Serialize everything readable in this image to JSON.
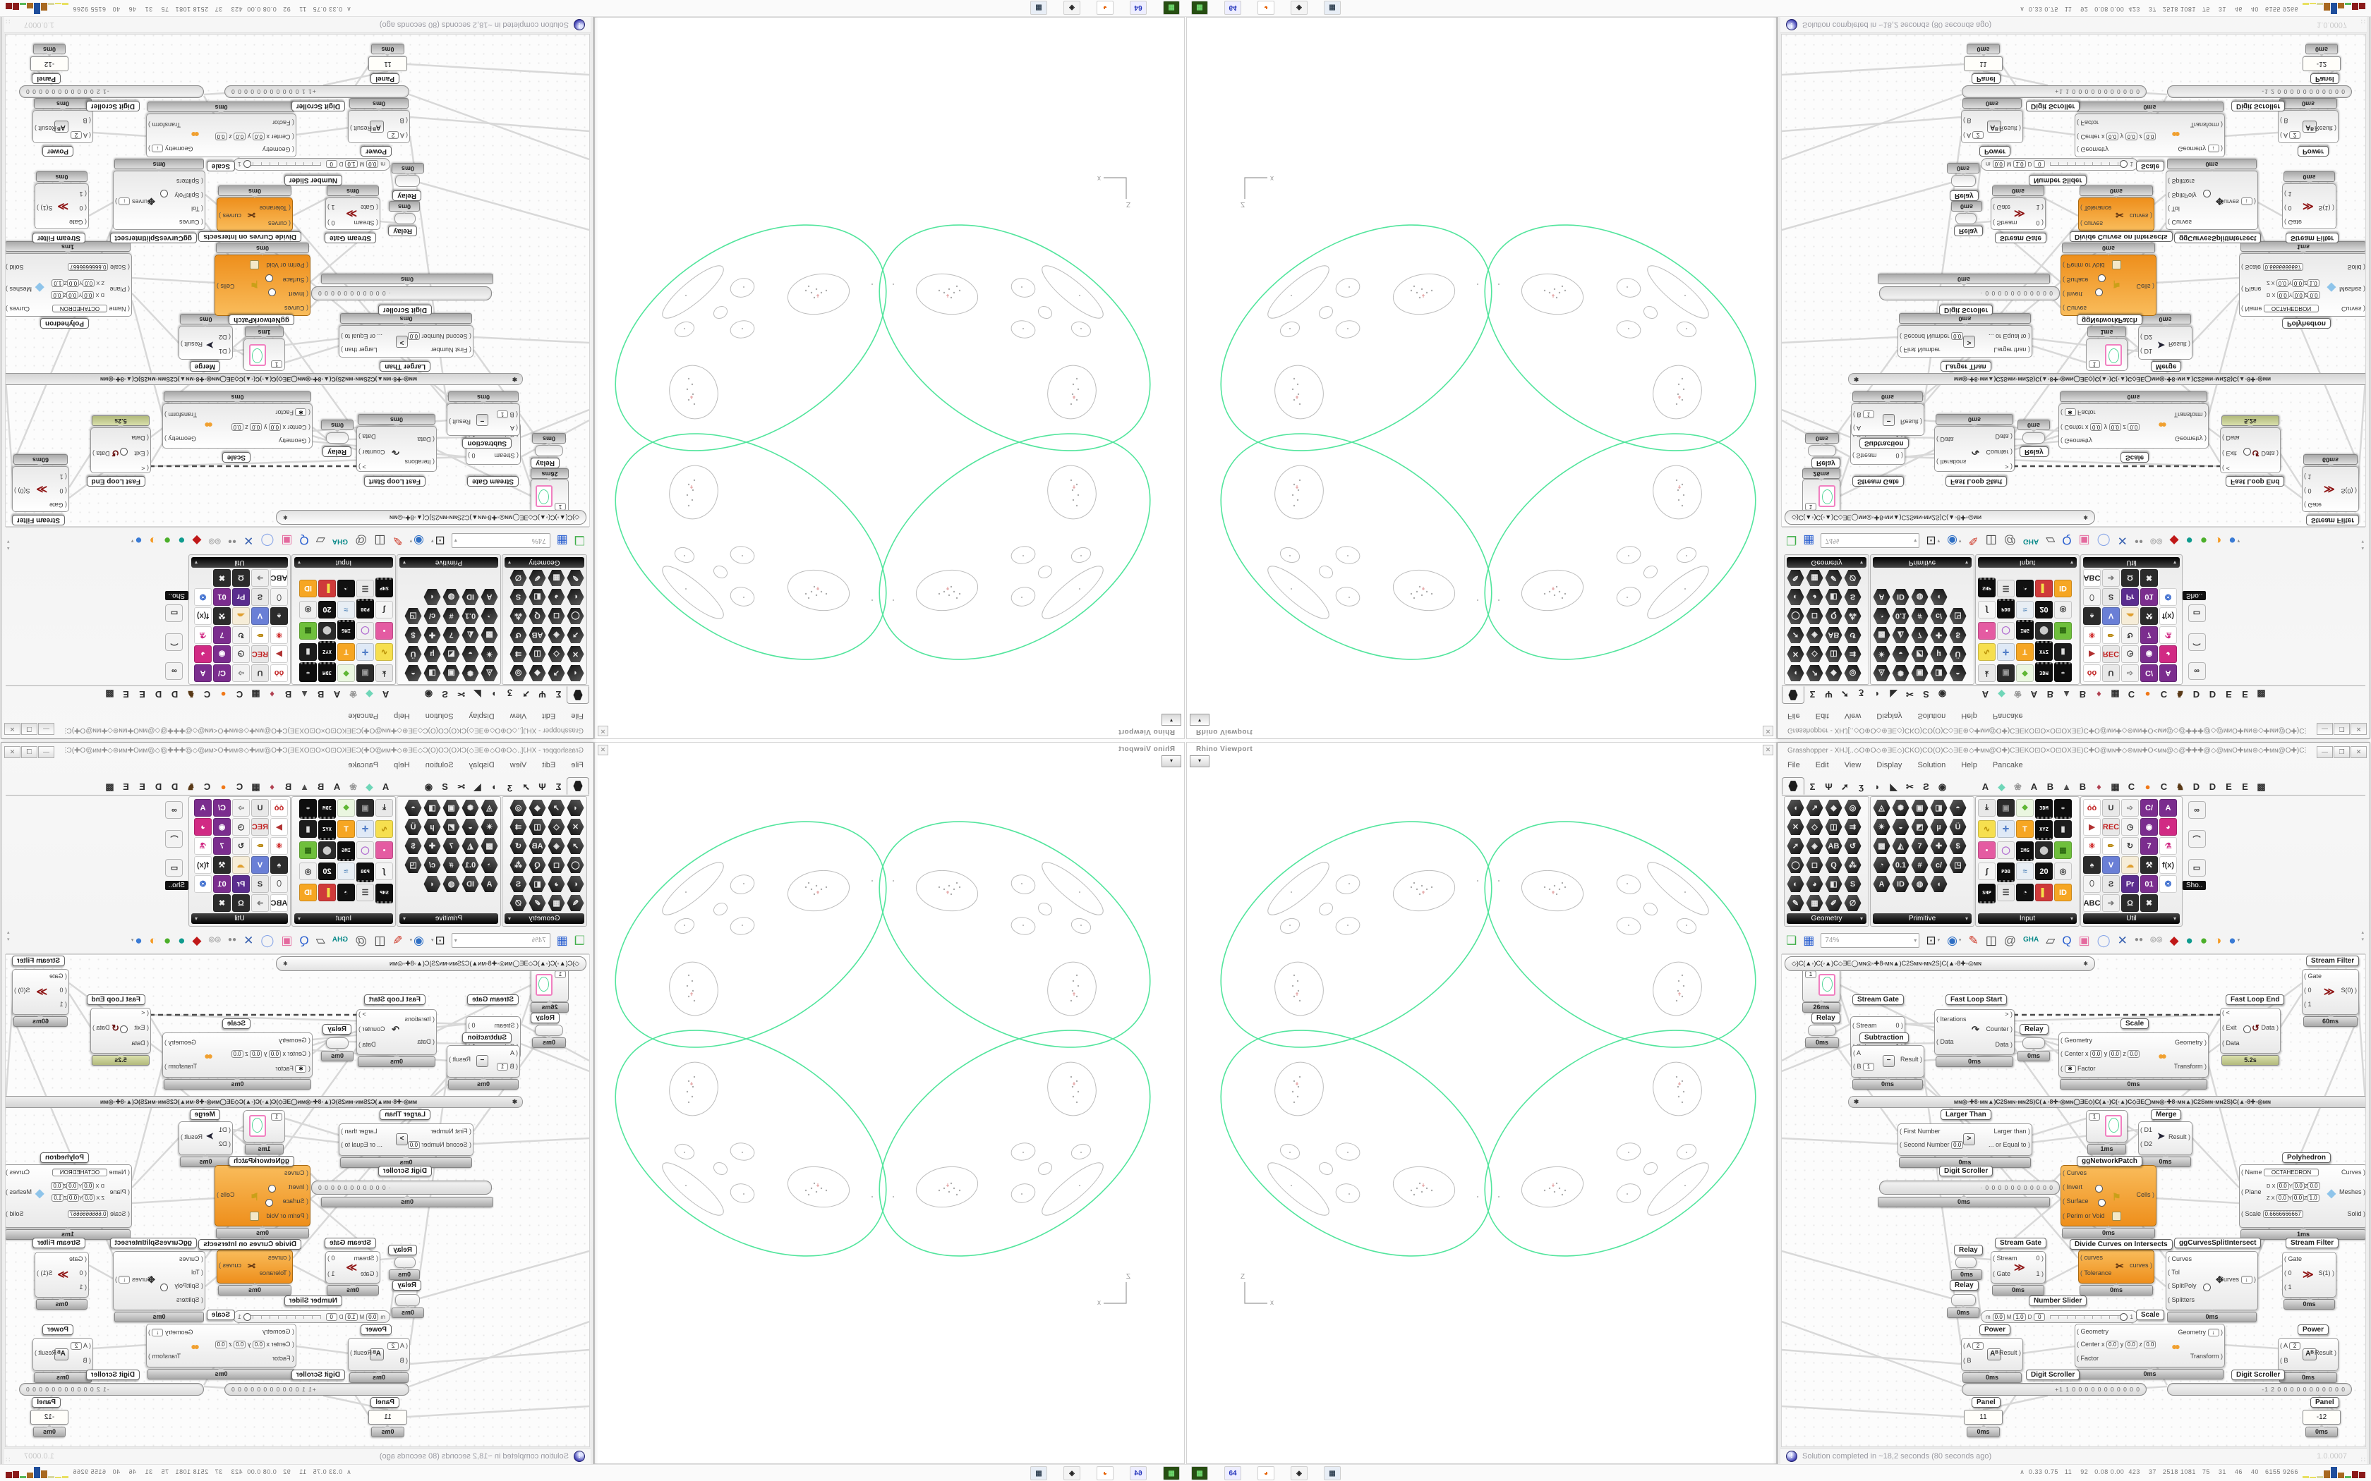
{
  "viewport": {
    "title": "Rhino Viewport",
    "close": "✕",
    "dropdown": "▾",
    "axis_z": "Z",
    "axis_x": "x",
    "curve_color": "#53e59d"
  },
  "gh": {
    "title": "Grasshopper - XHJ[..◇O⊕O◇⊛ƎE◇)CKO)CO(O)C◇ƎE⊛◇✚ᴍɴ@O✚)CƎEKO⊡O×O⊡OXƎE)C✚O@ᴍɴ✚◇⊛ᴍɴ✚O<ᴍɴ@◇@✚✚✚@◇@ᴍɴO✚ᴍɴ⊛◇✚ᴍɴ@O✚)CƎEKO⊡O≈O⊡…",
    "btn_min": "—",
    "btn_max": "❐",
    "btn_close": "✕",
    "menu": [
      "File",
      "Edit",
      "View",
      "Display",
      "Solution",
      "Help",
      "Pancake"
    ],
    "tabs": [
      {
        "hex": true,
        "sel": true,
        "name": "tab-params"
      },
      {
        "g": "Σ",
        "name": "tab-maths"
      },
      {
        "g": "Ψ",
        "name": "tab-sets"
      },
      {
        "g": "➚",
        "name": "tab-vector"
      },
      {
        "g": "ʒ",
        "name": "tab-curve"
      },
      {
        "g": "◗",
        "name": "tab-surface"
      },
      {
        "g": "◣",
        "name": "tab-mesh"
      },
      {
        "g": "✂",
        "name": "tab-intersect"
      },
      {
        "g": "Ƨ",
        "name": "tab-transform"
      },
      {
        "g": "◉",
        "name": "tab-display"
      },
      {
        "g": "A",
        "name": "tab-addon-a"
      },
      {
        "g": "◆",
        "c": "#6fd6b8",
        "name": "tab-addon-gem"
      },
      {
        "g": "❀",
        "c": "#999999",
        "name": "tab-addon-flower"
      },
      {
        "g": "A",
        "name": "tab-addon-a2"
      },
      {
        "g": "B",
        "name": "tab-addon-b"
      },
      {
        "g": "▲",
        "c": "#4a4a4a",
        "name": "tab-addon-mountain"
      },
      {
        "g": "B",
        "name": "tab-addon-b2"
      },
      {
        "g": "♦",
        "c": "#b04050",
        "name": "tab-addon-shield"
      },
      {
        "g": "▦",
        "c": "#333333",
        "name": "tab-addon-grid"
      },
      {
        "g": "C",
        "name": "tab-addon-c"
      },
      {
        "g": "●",
        "c": "#f07818",
        "name": "tab-addon-orange"
      },
      {
        "g": "C",
        "name": "tab-addon-c2"
      },
      {
        "g": "♞",
        "c": "#5a3a18",
        "name": "tab-addon-bird"
      },
      {
        "g": "D",
        "name": "tab-addon-d"
      },
      {
        "g": "D",
        "name": "tab-addon-d2"
      },
      {
        "g": "E",
        "name": "tab-addon-e"
      },
      {
        "g": "E",
        "name": "tab-addon-e2"
      },
      {
        "g": "▩",
        "c": "#333333",
        "name": "tab-addon-grid2"
      }
    ],
    "palettes": [
      {
        "label": "Geometry",
        "icons": [
          {
            "g": "◖"
          },
          {
            "g": "↗"
          },
          {
            "g": "◆"
          },
          {
            "g": "◎"
          },
          {
            "g": "✕"
          },
          {
            "g": "◇"
          },
          {
            "g": "◫"
          },
          {
            "g": "⇉"
          },
          {
            "g": "➚"
          },
          {
            "g": "◈"
          },
          {
            "g": "AB"
          },
          {
            "g": "↺"
          },
          {
            "g": "◯"
          },
          {
            "g": "◻"
          },
          {
            "g": "Q"
          },
          {
            "g": "⁂"
          },
          {
            "g": "◐"
          },
          {
            "g": "◕"
          },
          {
            "g": "◧"
          },
          {
            "g": "S"
          },
          {
            "g": "✎"
          },
          {
            "g": "▦"
          },
          {
            "g": "✐"
          },
          {
            "g": "∅"
          }
        ]
      },
      {
        "label": "Primitive",
        "icons": [
          {
            "g": "◬"
          },
          {
            "g": "✺"
          },
          {
            "g": "▣"
          },
          {
            "g": "◨"
          },
          {
            "g": "◓"
          },
          {
            "g": "✴"
          },
          {
            "g": "◒"
          },
          {
            "g": "◩"
          },
          {
            "g": "µ"
          },
          {
            "g": "Ü"
          },
          {
            "g": "▩"
          },
          {
            "g": "◭"
          },
          {
            "g": "7"
          },
          {
            "g": "✚"
          },
          {
            "g": "$"
          },
          {
            "g": "◔"
          },
          {
            "g": "0.1"
          },
          {
            "g": "#"
          },
          {
            "g": "c/"
          },
          {
            "g": "◳"
          },
          {
            "g": "A"
          },
          {
            "g": "ID"
          },
          {
            "g": "◍"
          },
          {
            "g": "◖"
          }
        ]
      },
      {
        "label": "Input",
        "icons": [
          {
            "g": "⤓",
            "bg": "#e8e8e8",
            "fg": "#222"
          },
          {
            "g": "▣",
            "bg": "#2b2b2b",
            "fg": "#999"
          },
          {
            "g": "❖",
            "bg": "#eaf6e0",
            "fg": "#5cb531"
          },
          {
            "g": "3DM",
            "chip": true
          },
          {
            "g": "∞",
            "chip": true
          },
          {
            "g": "∿",
            "bg": "#f6df4f",
            "fg": "#b58a00"
          },
          {
            "g": "✛",
            "bg": "#dfe9f6",
            "fg": "#3a6cc0"
          },
          {
            "g": "T",
            "bg": "#f6a623",
            "fg": "#fff"
          },
          {
            "g": "XYZ",
            "chip": true
          },
          {
            "g": "▮",
            "bg": "#1c1c1c",
            "fg": "#ddd"
          },
          {
            "g": "▪",
            "bg": "#e45ba2",
            "fg": "#fff"
          },
          {
            "g": "◯",
            "bg": "#efefef",
            "fg": "#b06ad0"
          },
          {
            "g": "IMG",
            "chip": true
          },
          {
            "g": "⬤",
            "bg": "#2a2a2a",
            "fg": "#ccc"
          },
          {
            "g": "▦",
            "bg": "#6fbf3c",
            "fg": "#2d6a12"
          },
          {
            "g": "∫",
            "bg": "#f4f4f4",
            "fg": "#222"
          },
          {
            "g": "PDB",
            "chip": true
          },
          {
            "g": "≈",
            "bg": "#e8eef4",
            "fg": "#5588bb"
          },
          {
            "g": "20",
            "bg": "#111",
            "fg": "#fff"
          },
          {
            "g": "◎",
            "bg": "#efefef",
            "fg": "#333"
          },
          {
            "g": "SHP",
            "chip": true
          },
          {
            "g": "☰",
            "bg": "#e9e9e9",
            "fg": "#444"
          },
          {
            "g": "◔",
            "bg": "#111",
            "fg": "#eee"
          },
          {
            "g": "▌",
            "bg": "#cf3a3a",
            "fg": "#f4e04a"
          },
          {
            "g": "ID",
            "bg": "#f6a623",
            "fg": "#fff"
          }
        ]
      },
      {
        "label": "Util",
        "icons": [
          {
            "g": "óò",
            "bg": "#fff",
            "fg": "#c02020"
          },
          {
            "g": "U",
            "bg": "#e8e8e8",
            "fg": "#333"
          },
          {
            "g": "➩",
            "bg": "#f2f2f2",
            "fg": "#888"
          },
          {
            "g": "C/",
            "bg": "#7b2d8e",
            "fg": "#fff"
          },
          {
            "g": "A",
            "bg": "#7b2d8e",
            "fg": "#fff"
          },
          {
            "g": "▶",
            "bg": "#fff",
            "fg": "#b03030"
          },
          {
            "g": "REC",
            "bg": "#e8e8e8",
            "fg": "#c02020"
          },
          {
            "g": "◷",
            "bg": "#f4f4f4",
            "fg": "#333"
          },
          {
            "g": "◉",
            "bg": "#7b2d8e",
            "fg": "#fff"
          },
          {
            "g": "◕",
            "bg": "#d12a84",
            "fg": "#fff"
          },
          {
            "g": "⚛",
            "bg": "#fff",
            "fg": "#cc2222"
          },
          {
            "g": "✏",
            "bg": "#fff",
            "fg": "#b8860b"
          },
          {
            "g": "↻",
            "bg": "#f4f4f4",
            "fg": "#333"
          },
          {
            "g": "7",
            "bg": "#7b2d8e",
            "fg": "#fff"
          },
          {
            "g": "⚗",
            "bg": "#fff",
            "fg": "#d12a84"
          },
          {
            "g": "♠",
            "bg": "#2b2b2b",
            "fg": "#ddd"
          },
          {
            "g": "V",
            "bg": "#6a7fd6",
            "fg": "#fff"
          },
          {
            "g": "☁",
            "bg": "#f6edd8",
            "fg": "#e0a030"
          },
          {
            "g": "⚒",
            "bg": "#2b2b2b",
            "fg": "#eee"
          },
          {
            "g": "f(x)",
            "bg": "#fff",
            "fg": "#333"
          },
          {
            "g": "⬯",
            "bg": "#f4f4f4",
            "fg": "#555"
          },
          {
            "g": "Ƨ",
            "bg": "#e8e8e8",
            "fg": "#333"
          },
          {
            "g": "Pr",
            "bg": "#5b2d8e",
            "fg": "#fff"
          },
          {
            "g": "01",
            "bg": "#7b2d8e",
            "fg": "#fff"
          },
          {
            "g": "❂",
            "bg": "#fff",
            "fg": "#3366cc"
          },
          {
            "g": "ABC",
            "bg": "#fff",
            "fg": "#222"
          },
          {
            "g": "➔",
            "bg": "#eee",
            "fg": "#777"
          },
          {
            "g": "Ω",
            "bg": "#2b2b2b",
            "fg": "#eee"
          },
          {
            "g": "✖",
            "bg": "#2b2b2b",
            "fg": "#eee"
          }
        ]
      }
    ],
    "overflow_icons": [
      {
        "g": "∞",
        "name": "goggles-icon"
      },
      {
        "g": "⌒",
        "name": "headset-icon"
      },
      {
        "g": "▭",
        "name": "projector-icon"
      }
    ],
    "overflow_tooltip": "Sho..",
    "toolbar": {
      "leading": [
        {
          "g": "❏",
          "c": "#3fae49",
          "name": "new-document-icon"
        },
        {
          "g": "▦",
          "c": "#2a5fd0",
          "name": "save-document-icon"
        }
      ],
      "zoom": "74%",
      "caret": "▾",
      "icons": [
        {
          "g": "⊡",
          "c": "#222",
          "dd": true,
          "name": "zoom-extents-icon"
        },
        {
          "g": "◉",
          "c": "#2f6fc4",
          "dd": true,
          "name": "preview-eye-icon"
        },
        {
          "g": "✎",
          "c": "#cc3322",
          "name": "paint-icon"
        },
        {
          "g": "◫",
          "c": "#333",
          "name": "extrude-icon"
        },
        {
          "g": "@",
          "c": "#666",
          "name": "at-icon"
        },
        {
          "g": "GHA",
          "c": "#0a8a8a",
          "small": true,
          "name": "gha-icon"
        },
        {
          "g": "▱",
          "c": "#444",
          "name": "sketch-icon"
        },
        {
          "g": "Q",
          "c": "#2a5fd0",
          "name": "find-icon"
        },
        {
          "g": "▣",
          "c": "#e46a9e",
          "name": "package-icon"
        },
        {
          "g": "◯",
          "c": "#8aa7e8",
          "name": "balloon-icon"
        },
        {
          "g": "✕",
          "c": "#3a62b0",
          "name": "jump-wires-icon"
        },
        {
          "g": "●●",
          "c": "#8a8a8a",
          "small": true,
          "name": "spheres-icon"
        },
        {
          "g": "◎◎",
          "c": "#aaa",
          "small": true,
          "name": "rings-icon"
        },
        {
          "g": "◆",
          "c": "#c01818",
          "name": "gem-icon"
        },
        {
          "g": "●",
          "c": "#0f9b8e",
          "name": "ball-teal-icon"
        },
        {
          "g": "●",
          "c": "#4caf2a",
          "name": "ball-green-icon"
        },
        {
          "g": "◑",
          "c": "#f59a23",
          "name": "ball-orange-icon"
        },
        {
          "g": "●",
          "c": "#3a7bd5",
          "dd": true,
          "name": "ball-blue-icon"
        }
      ],
      "scroll_up": "▴",
      "scroll_down": "▾"
    },
    "docsel": {
      "text": "◇)C(▲◦)C(◦▲)C◇ƎE◯ᴍɴ◎◦✚8◦ᴍɴ▲)C2Sᴍɴ◦ᴍɴ2S)C(▲◦8✚◦◎ᴍɴ",
      "close": "✱"
    },
    "status": {
      "text": "Solution completed in ~18,2 seconds (80 seconds ago)",
      "version": "1.0.0007",
      "grip": "∷"
    }
  },
  "common": {
    "relay": "Relay",
    "ms0": "0ms",
    "ms1": "1ms",
    "stream": "Stream",
    "gate": "Gate",
    "n0": "0",
    "n1": "1",
    "v00": "0.0",
    "stream_gate": "Stream Gate",
    "stream_filter": "Stream Filter",
    "digit_scroller": "Digit Scroller",
    "panel": "Panel",
    "power": "Power",
    "scale": "Scale",
    "geometry": "Geometry",
    "center": "Center",
    "factor": "Factor",
    "transform": "Transform",
    "result": "Result",
    "data": "Data",
    "curves": "Curves",
    "ax": "x",
    "ay": "y",
    "az": "z",
    "ast": "✱"
  },
  "canvas": {
    "group": {
      "l": "✱",
      "r": "✱",
      "text": "ᴍɴ◎◦✚8◦ᴍɴ▲)C2Sᴍɴ◦ᴍɴ2S)C(▲◦8✚◦◎ᴍɴ◯ƎE◇)C(▲◦)C(◦▲)C◇ƎE◯ᴍɴ◎◦✚8◦ᴍɴ▲)C2Sᴍɴ◦ᴍɴ2S)C(▲◦8✚◦◎ᴍɴ"
    },
    "nodes": {
      "relay_circle": {
        "value": "1",
        "time": "26ms"
      },
      "fls": {
        "tag": "Fast Loop Start",
        "iterations": "Iterations",
        "gt": ">",
        "counter": "Counter",
        "icon": "↷"
      },
      "fle": {
        "tag": "Fast Loop End",
        "lt": "<",
        "exit": "Exit",
        "time": "5.2s",
        "icon": "↺"
      },
      "sf_a": {
        "out": "S(0)",
        "time": "60ms"
      },
      "sf_b": {
        "out": "S(1)"
      },
      "sub": {
        "tag": "Subtraction",
        "a": "A",
        "b": "B",
        "b_value": "1",
        "glyph": "−"
      },
      "lt": {
        "tag": "Larger Than",
        "first": "First Number",
        "second": "Second Number",
        "glyph": ">",
        "out1": "Larger than",
        "out2": "... or Equal to"
      },
      "ds_a": {
        "digits": "· 0 0 0 0 0 0 0 0 0  0 0"
      },
      "ggnp": {
        "tag": "ggNetworkPatch",
        "value": "1"
      },
      "merge": {
        "tag": "Merge",
        "d1": "D1",
        "d2": "D2",
        "icon": "➤"
      },
      "poly": {
        "tag": "Polyhedron",
        "name": "Name",
        "name_value": "OCTAHEDRON",
        "plane": "Plane",
        "dx": "D X",
        "zx": "Z X",
        "y": "Y",
        "z": "Z",
        "v1": "1.0",
        "scale_value": "0.6666666667",
        "meshes": "Meshes",
        "solid": "Solid",
        "icon": "◆"
      },
      "div_a": {
        "tag": "Divide Curves on Intersects",
        "invert": "Invert",
        "surface": "Surface",
        "perim": "Perim or Void",
        "cells": "Cells",
        "icon": "⚑"
      },
      "div_b": {
        "curves": "curves",
        "tolerance": "Tolerance",
        "icon": "✂"
      },
      "ggsi": {
        "tag": "ggCurvesSplitIntersect",
        "tol": "Tol",
        "splitpoly": "SplitPoly",
        "splitters": "Splitters",
        "icon": "✥"
      },
      "slider": {
        "tag": "Number Slider",
        "m": "m",
        "mv": "0.0",
        "M": "M",
        "Mv": "1.0",
        "d": "D",
        "dv": "0",
        "end": "1"
      },
      "power": {
        "a": "A",
        "av": "2",
        "b": "B",
        "icon": "Aᴮ"
      },
      "ds_b": {
        "digits": "+1 1  0 0 0 0 0 0 0 0 0 0 0"
      },
      "ds_c": {
        "digits": "-1 2  0 0 0 0 0 0 0 0 0 0 0"
      },
      "pan_a": {
        "value": "11"
      },
      "pan_b": {
        "value": "-12"
      },
      "gate_icon": "≫",
      "filter_icon": "≫",
      "scale_icon": "●●"
    }
  },
  "taskbar": {
    "apps": [
      {
        "g": "▦",
        "bg": "#274e13",
        "fg": "#6fdc6f",
        "name": "terminal-icon"
      },
      {
        "g": "64",
        "bg": "#eeeeff",
        "fg": "#2233bb",
        "name": "win64-floppy-icon"
      },
      {
        "g": "◕",
        "bg": "#ffffff",
        "fg": "#e66000",
        "name": "firefox-icon"
      },
      {
        "g": "◈",
        "bg": "#f4f4f4",
        "fg": "#222222",
        "name": "inkscape-icon"
      },
      {
        "g": "▦",
        "bg": "#e8eef6",
        "fg": "#334455",
        "name": "calculator-icon"
      }
    ],
    "monitor": {
      "expand": "∧",
      "values": "0.33 0.75   11    92   0.08 0.00  423    37   2518 1081   75    31    46    40   6155 9266"
    }
  }
}
